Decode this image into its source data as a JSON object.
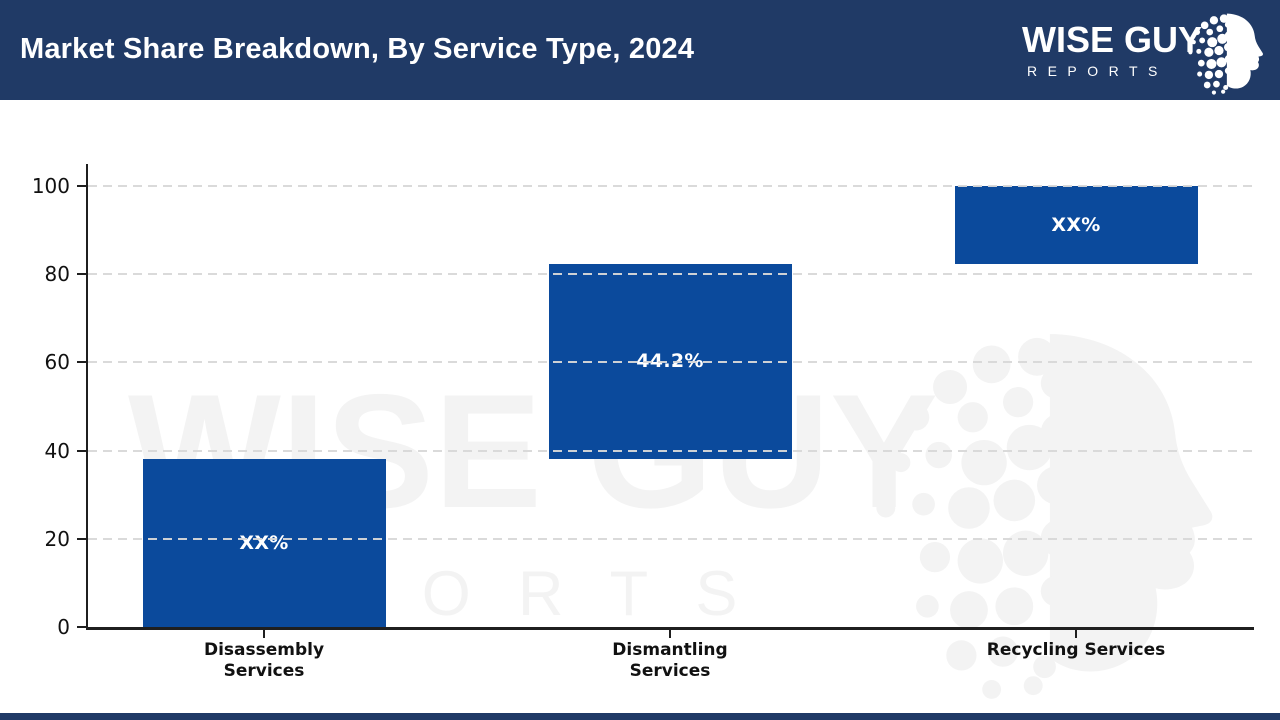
{
  "header": {
    "title": "Market Share Breakdown, By Service Type, 2024",
    "logo": {
      "wordmark": "WISE GUY",
      "subtitle": "REPORTS",
      "icon": "dotted-head-icon"
    }
  },
  "watermark": {
    "wordmark": "WISE GUY",
    "subtitle": "REPORTS"
  },
  "chart_data": {
    "type": "bar",
    "subtype": "stacked-progression-segments",
    "title": "Market Share Breakdown, By Service Type, 2024",
    "categories": [
      "Disassembly\nServices",
      "Dismantling\nServices",
      "Recycling Services"
    ],
    "series": [
      {
        "name": "Disassembly Services",
        "start": 0,
        "end": 38.2,
        "value": 38.2,
        "label": "XX%"
      },
      {
        "name": "Dismantling Services",
        "start": 38.2,
        "end": 82.4,
        "value": 44.2,
        "label": "44.2%"
      },
      {
        "name": "Recycling Services",
        "start": 82.4,
        "end": 100,
        "value": 17.6,
        "label": "XX%"
      }
    ],
    "xlabel": "",
    "ylabel": "",
    "ylim": [
      0,
      100
    ],
    "yticks": [
      0,
      20,
      40,
      60,
      80,
      100
    ],
    "grid": "horizontal-dashed",
    "legend": "none",
    "bar_color": "#0b4a9c",
    "bar_label_color": "#ffffff"
  },
  "colors": {
    "header_bg": "#203a66",
    "footer_bg": "#203a66",
    "title_text": "#ffffff",
    "bar": "#0b4a9c",
    "grid": "#d8d8d8",
    "axis": "#1f1f1f",
    "tick_text": "#111111",
    "watermark": "#f3f3f3"
  }
}
